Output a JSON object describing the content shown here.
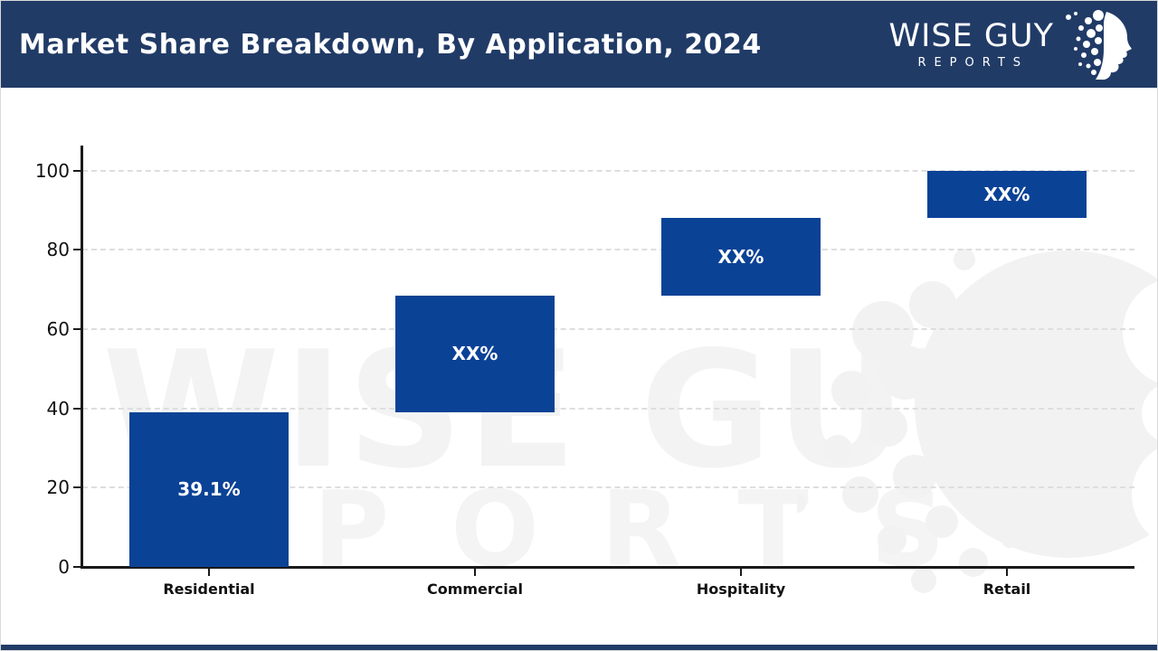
{
  "header": {
    "title": "Market Share Breakdown, By Application, 2024"
  },
  "logo": {
    "line1": "WISE GUY",
    "line2": "REPORTS"
  },
  "watermark": {
    "line1": "WISE GUY",
    "line2": "PORTS"
  },
  "colors": {
    "header_navy": "#213b67",
    "bar_blue": "#0a4296",
    "grid_gray": "#dedede",
    "axis_black": "#1a1a1a",
    "watermark_gray": "#f3f3f3"
  },
  "chart_data": {
    "type": "bar",
    "subtype": "waterfall",
    "title": "Market Share Breakdown, By Application, 2024",
    "xlabel": "",
    "ylabel": "",
    "categories": [
      "Residential",
      "Commercial",
      "Hospitality",
      "Retail"
    ],
    "segments": [
      {
        "category": "Residential",
        "start": 0,
        "end": 39.1,
        "label": "39.1%"
      },
      {
        "category": "Commercial",
        "start": 39.1,
        "end": 68.5,
        "label": "XX%"
      },
      {
        "category": "Hospitality",
        "start": 68.5,
        "end": 88,
        "label": "XX%"
      },
      {
        "category": "Retail",
        "start": 88,
        "end": 100,
        "label": "XX%"
      }
    ],
    "yticks": [
      0,
      20,
      40,
      60,
      80,
      100
    ],
    "ylim": [
      0,
      100
    ],
    "grid": "horizontal-dashed",
    "legend": "none"
  }
}
